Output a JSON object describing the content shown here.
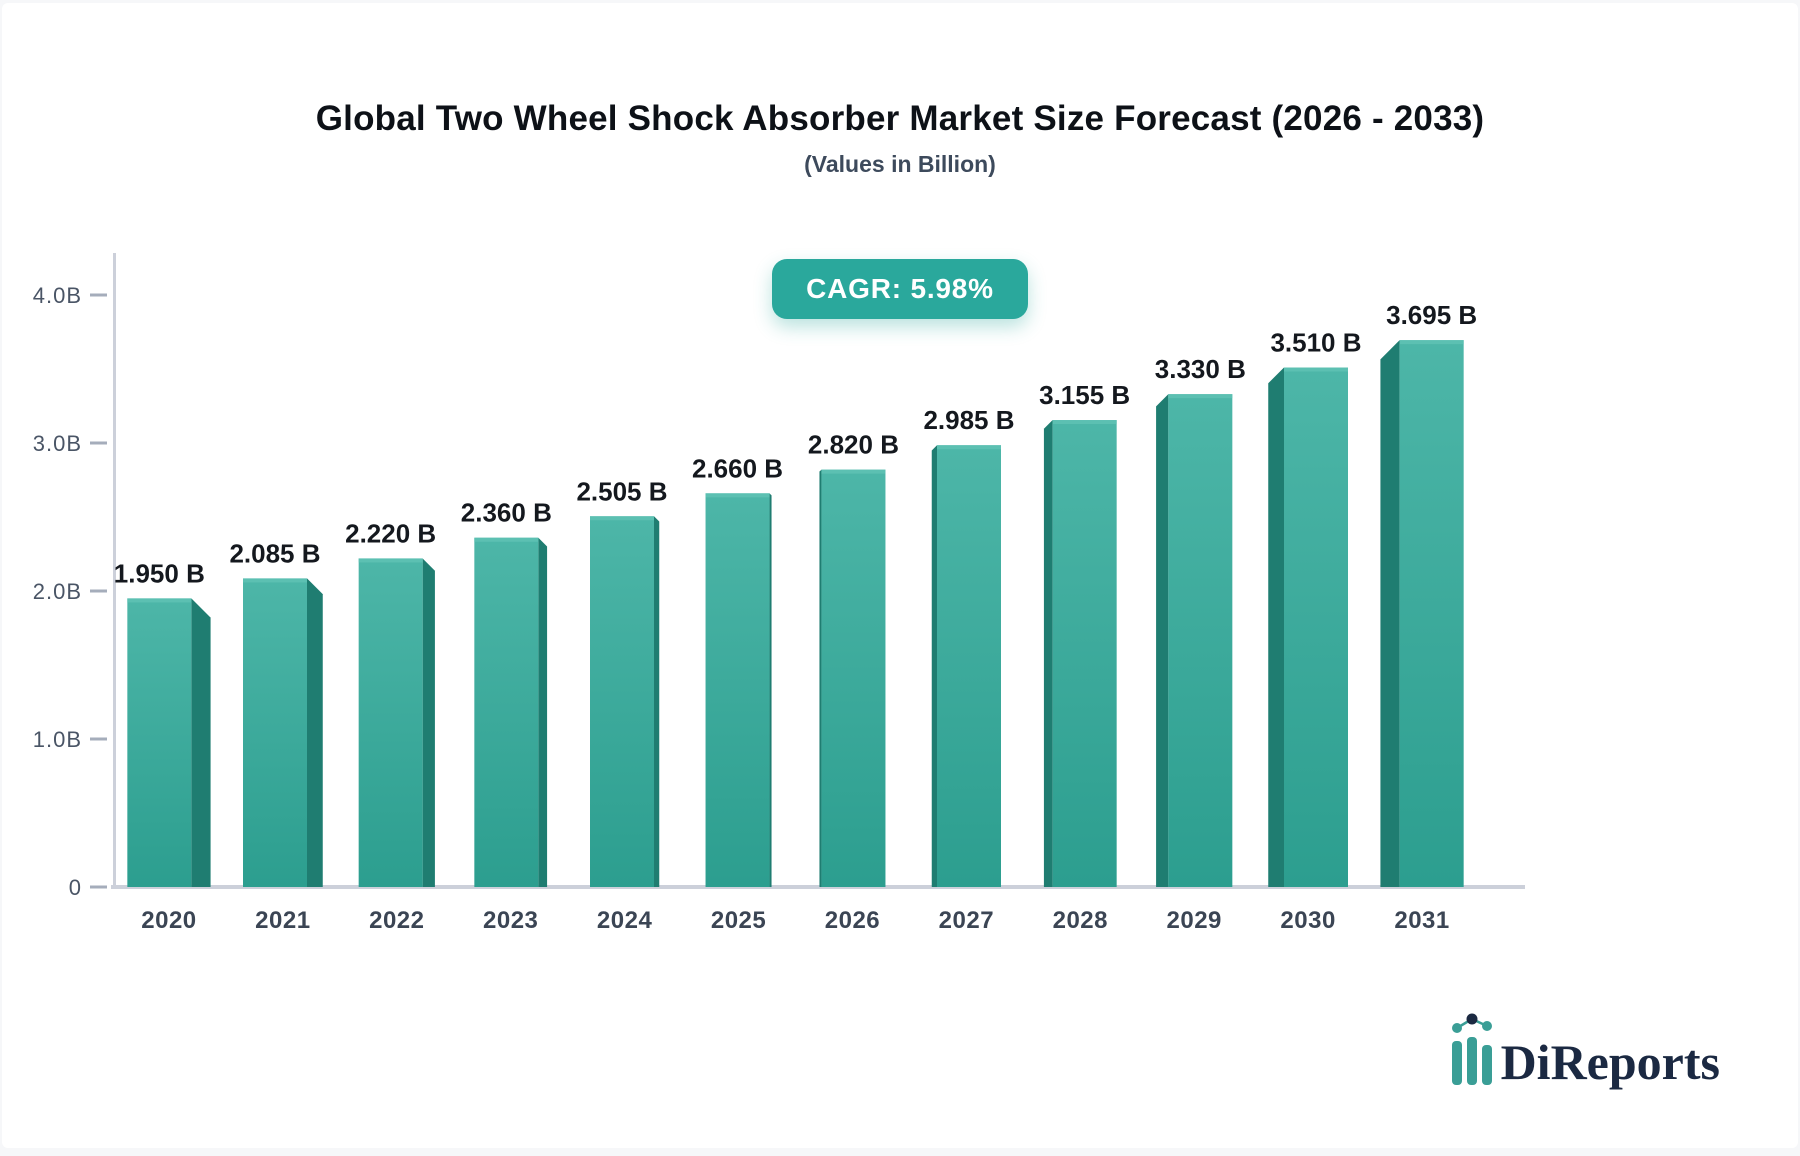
{
  "header": {
    "title": "Global Two Wheel Shock Absorber Market Size Forecast (2026 - 2033)",
    "subtitle": "(Values in Billion)",
    "cagr_badge": "CAGR: 5.98%"
  },
  "chart_data": {
    "type": "bar",
    "title": "Global Two Wheel Shock Absorber Market Size Forecast (2026 - 2033)",
    "subtitle": "(Values in Billion)",
    "categories": [
      "2020",
      "2021",
      "2022",
      "2023",
      "2024",
      "2025",
      "2026",
      "2027",
      "2028",
      "2029",
      "2030",
      "2031"
    ],
    "values": [
      1.95,
      2.085,
      2.22,
      2.36,
      2.505,
      2.66,
      2.82,
      2.985,
      3.155,
      3.33,
      3.51,
      3.695
    ],
    "value_labels": [
      "1.950 B",
      "2.085 B",
      "2.220 B",
      "2.360 B",
      "2.505 B",
      "2.660 B",
      "2.820 B",
      "2.985 B",
      "3.155 B",
      "3.330 B",
      "3.510 B",
      "3.695 B"
    ],
    "xlabel": "",
    "ylabel": "",
    "ylim": [
      0,
      4
    ],
    "ytick_values": [
      0,
      1,
      2,
      3,
      4
    ],
    "ytick_labels": [
      "0",
      "1.0B",
      "2.0B",
      "3.0B",
      "4.0B"
    ],
    "grid": false,
    "legend": false,
    "bar_style": "3d-perspective",
    "annotation": "CAGR: 5.98%"
  },
  "colors": {
    "bar_front_top": "#4db6a8",
    "bar_front_bottom": "#2c9e8f",
    "bar_top_highlight": "#5fc2b4",
    "bar_side": "#1f7d71",
    "badge_bg": "#2aa89c",
    "axis_line": "#ccd0da",
    "tick_dash": "#a5adbb",
    "ytick_text": "#4a5566",
    "xtick_text": "#3b4554",
    "value_text": "#14181e",
    "logo_navy": "#1b2942",
    "logo_teal": "#3a9e96"
  },
  "logo": {
    "text": "DiReports"
  }
}
